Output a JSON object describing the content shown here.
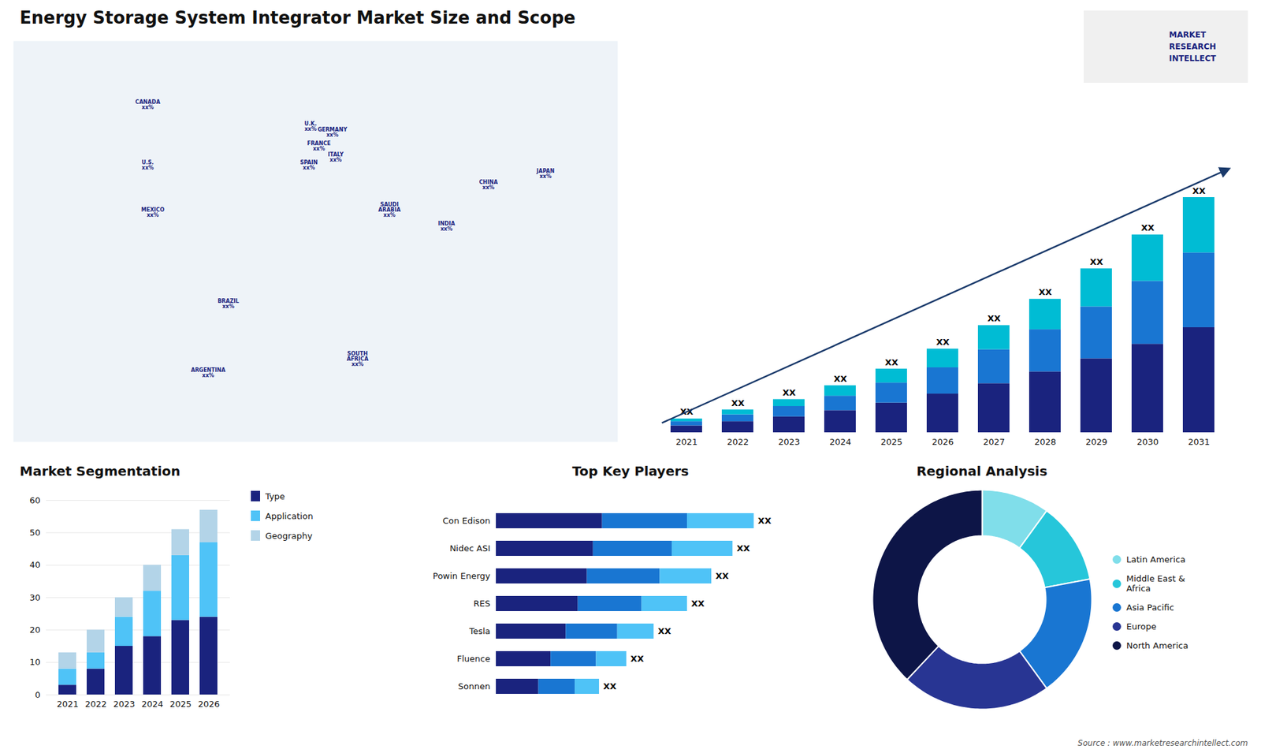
{
  "chart_data": [
    {
      "type": "map",
      "title": "Energy Storage System Integrator Market Size and Scope",
      "xlim": [
        -180,
        180
      ],
      "ylim": [
        -60,
        85
      ],
      "tick_labels": false,
      "color": "#1a237e",
      "annotations": [
        {
          "text": "U.S.\nxx%",
          "x": -100,
          "y": 40
        },
        {
          "text": "CANADA\nxx%",
          "x": -100,
          "y": 62
        },
        {
          "text": "MEXICO\nxx%",
          "x": -97,
          "y": 23
        },
        {
          "text": "BRAZIL\nxx%",
          "x": -52,
          "y": -10
        },
        {
          "text": "ARGENTINA\nxx%",
          "x": -64,
          "y": -35
        },
        {
          "text": "U.K.\nxx%",
          "x": -3,
          "y": 54
        },
        {
          "text": "FRANCE\nxx%",
          "x": 2,
          "y": 47
        },
        {
          "text": "SPAIN\nxx%",
          "x": -4,
          "y": 40
        },
        {
          "text": "GERMANY\nxx%",
          "x": 10,
          "y": 52
        },
        {
          "text": "ITALY\nxx%",
          "x": 12,
          "y": 43
        },
        {
          "text": "SAUDI\nARABIA\nxx%",
          "x": 44,
          "y": 24
        },
        {
          "text": "SOUTH\nAFRICA\nxx%",
          "x": 25,
          "y": -30
        },
        {
          "text": "CHINA\nxx%",
          "x": 103,
          "y": 33
        },
        {
          "text": "INDIA\nxx%",
          "x": 78,
          "y": 18
        },
        {
          "text": "JAPAN\nxx%",
          "x": 137,
          "y": 37
        }
      ]
    },
    {
      "type": "bar",
      "stacked": true,
      "categories": [
        "2021",
        "2022",
        "2023",
        "2024",
        "2025",
        "2026",
        "2027",
        "2028",
        "2029",
        "2030",
        "2031"
      ],
      "series": [
        {
          "color": "#1a237e",
          "values": [
            1.0,
            1.6,
            2.3,
            3.2,
            4.3,
            5.6,
            7.1,
            8.8,
            10.7,
            12.8,
            15.2
          ]
        },
        {
          "color": "#1976d2",
          "values": [
            0.6,
            1.0,
            1.5,
            2.1,
            2.9,
            3.8,
            4.9,
            6.1,
            7.5,
            9.1,
            10.8
          ]
        },
        {
          "color": "#00bcd4",
          "values": [
            0.4,
            0.7,
            1.0,
            1.5,
            2.0,
            2.7,
            3.5,
            4.4,
            5.5,
            6.7,
            8.0
          ]
        }
      ],
      "ylim": [
        0,
        46.92
      ],
      "tick_labels": "x",
      "total_labels": [
        "XX",
        "XX",
        "XX",
        "XX",
        "XX",
        "XX",
        "XX",
        "XX",
        "XX",
        "XX",
        "XX"
      ],
      "annotations": [
        {
          "text": "MARKET"
        },
        {
          "text": "RESEARCH"
        },
        {
          "text": "INTELLECT"
        }
      ]
    },
    {
      "type": "bar",
      "title": "Market Segmentation",
      "stacked": true,
      "categories": [
        "2021",
        "2022",
        "2023",
        "2024",
        "2025",
        "2026"
      ],
      "series": [
        {
          "name": "Type",
          "color": "#1a237e",
          "values": [
            3,
            8,
            15,
            18,
            23,
            24
          ]
        },
        {
          "name": "Application",
          "color": "#4fc3f7",
          "values": [
            5,
            5,
            9,
            14,
            20,
            23
          ]
        },
        {
          "name": "Geography",
          "color": "#b3d4e8",
          "values": [
            5,
            7,
            6,
            8,
            8,
            10
          ]
        }
      ],
      "ylim": [
        0,
        60
      ],
      "yticks": [
        0,
        10,
        20,
        30,
        40,
        50,
        60
      ],
      "grid": true,
      "legend": "right"
    },
    {
      "type": "bar",
      "title": "Top Key Players",
      "orientation": "horizontal",
      "stacked": true,
      "categories": [
        "Con Edison",
        "Nidec ASI",
        "Powin Energy",
        "RES",
        "Tesla",
        "Fluence",
        "Sonnen"
      ],
      "series": [
        {
          "color": "#1a237e",
          "values": [
            0.35,
            0.32,
            0.3,
            0.27,
            0.23,
            0.18,
            0.14
          ]
        },
        {
          "color": "#1976d2",
          "values": [
            0.28,
            0.26,
            0.24,
            0.21,
            0.17,
            0.15,
            0.12
          ]
        },
        {
          "color": "#4fc3f7",
          "values": [
            0.22,
            0.2,
            0.17,
            0.15,
            0.12,
            0.1,
            0.08
          ]
        }
      ],
      "xlim": [
        0,
        1.05
      ],
      "tick_labels": "y",
      "total_labels": [
        "XX",
        "XX",
        "XX",
        "XX",
        "XX",
        "XX",
        "XX"
      ]
    },
    {
      "type": "donut",
      "title": "Regional Analysis",
      "categories": [
        "Latin America",
        "Middle East &\nAfrica",
        "Asia Pacific",
        "Europe",
        "North America"
      ],
      "values": [
        10,
        12,
        18,
        22,
        38
      ],
      "colors": [
        "#80deea",
        "#26c6da",
        "#1976d2",
        "#283593",
        "#0d1547"
      ],
      "legend": "right",
      "annotations": [
        {
          "text": "Source : www.marketresearchintellect.com"
        }
      ]
    }
  ]
}
